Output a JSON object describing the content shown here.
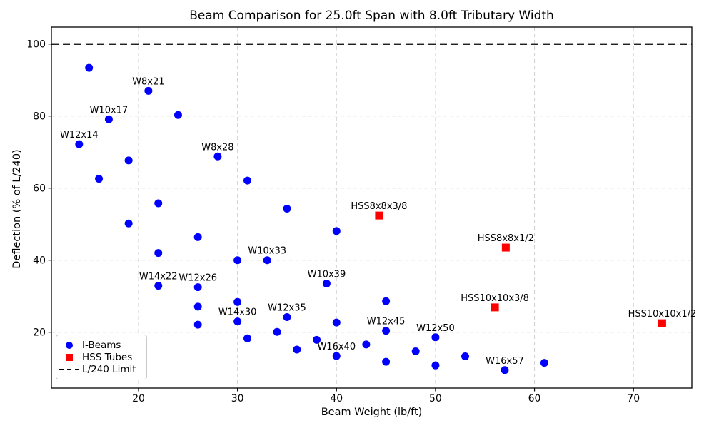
{
  "chart_data": {
    "type": "scatter",
    "title": "Beam Comparison for 25.0ft Span with 8.0ft Tributary Width",
    "xlabel": "Beam Weight (lb/ft)",
    "ylabel": "Deflection (% of L/240)",
    "xlim": [
      11.2,
      75.9
    ],
    "ylim": [
      4.5,
      104.7
    ],
    "x_ticks": [
      20,
      30,
      40,
      50,
      60,
      70
    ],
    "y_ticks": [
      20,
      40,
      60,
      80,
      100
    ],
    "grid": true,
    "grid_color": "#cfcfcf",
    "limit_line": {
      "y": 100,
      "label": "L/240 Limit",
      "color": "#000000",
      "style": "dashed"
    },
    "legend": {
      "position": "lower left",
      "entries": [
        {
          "label": "I-Beams",
          "marker": "circle",
          "color": "#0000ff"
        },
        {
          "label": "HSS Tubes",
          "marker": "square",
          "color": "#ff0000"
        },
        {
          "label": "L/240 Limit",
          "marker": "dashed-line",
          "color": "#000000"
        }
      ]
    },
    "series": [
      {
        "name": "I-Beams",
        "marker": "circle",
        "color": "#0000ff",
        "points": [
          {
            "x": 14,
            "y": 72.2,
            "label": "W12x14"
          },
          {
            "x": 15,
            "y": 93.4
          },
          {
            "x": 16,
            "y": 62.6
          },
          {
            "x": 17,
            "y": 79.1,
            "label": "W10x17"
          },
          {
            "x": 19,
            "y": 67.7
          },
          {
            "x": 19,
            "y": 50.2
          },
          {
            "x": 21,
            "y": 87.0,
            "label": "W8x21"
          },
          {
            "x": 22,
            "y": 55.8
          },
          {
            "x": 22,
            "y": 42.0
          },
          {
            "x": 22,
            "y": 32.9,
            "label": "W14x22"
          },
          {
            "x": 24,
            "y": 80.3
          },
          {
            "x": 26,
            "y": 46.4
          },
          {
            "x": 26,
            "y": 32.5,
            "label": "W12x26"
          },
          {
            "x": 26,
            "y": 27.1
          },
          {
            "x": 26,
            "y": 22.1
          },
          {
            "x": 28,
            "y": 68.8,
            "label": "W8x28"
          },
          {
            "x": 30,
            "y": 40.0
          },
          {
            "x": 30,
            "y": 28.4
          },
          {
            "x": 30,
            "y": 23.0,
            "label": "W14x30"
          },
          {
            "x": 31,
            "y": 62.1
          },
          {
            "x": 31,
            "y": 18.3
          },
          {
            "x": 33,
            "y": 40.0,
            "label": "W10x33"
          },
          {
            "x": 34,
            "y": 20.1
          },
          {
            "x": 35,
            "y": 54.3
          },
          {
            "x": 35,
            "y": 24.2,
            "label": "W12x35"
          },
          {
            "x": 36,
            "y": 15.2
          },
          {
            "x": 38,
            "y": 17.9
          },
          {
            "x": 39,
            "y": 33.5,
            "label": "W10x39"
          },
          {
            "x": 40,
            "y": 48.1
          },
          {
            "x": 40,
            "y": 22.7
          },
          {
            "x": 40,
            "y": 13.4,
            "label": "W16x40"
          },
          {
            "x": 43,
            "y": 16.6
          },
          {
            "x": 45,
            "y": 28.6
          },
          {
            "x": 45,
            "y": 20.4,
            "label": "W12x45"
          },
          {
            "x": 45,
            "y": 11.8
          },
          {
            "x": 48,
            "y": 14.7
          },
          {
            "x": 50,
            "y": 18.6,
            "label": "W12x50"
          },
          {
            "x": 50,
            "y": 10.8
          },
          {
            "x": 53,
            "y": 13.3
          },
          {
            "x": 57,
            "y": 9.5,
            "label": "W16x57"
          },
          {
            "x": 61,
            "y": 11.5
          }
        ]
      },
      {
        "name": "HSS Tubes",
        "marker": "square",
        "color": "#ff0000",
        "points": [
          {
            "x": 44.3,
            "y": 52.4,
            "label": "HSS8x8x3/8"
          },
          {
            "x": 57.1,
            "y": 43.5,
            "label": "HSS8x8x1/2"
          },
          {
            "x": 56.0,
            "y": 26.9,
            "label": "HSS10x10x3/8"
          },
          {
            "x": 72.9,
            "y": 22.5,
            "label": "HSS10x10x1/2"
          }
        ]
      }
    ]
  }
}
